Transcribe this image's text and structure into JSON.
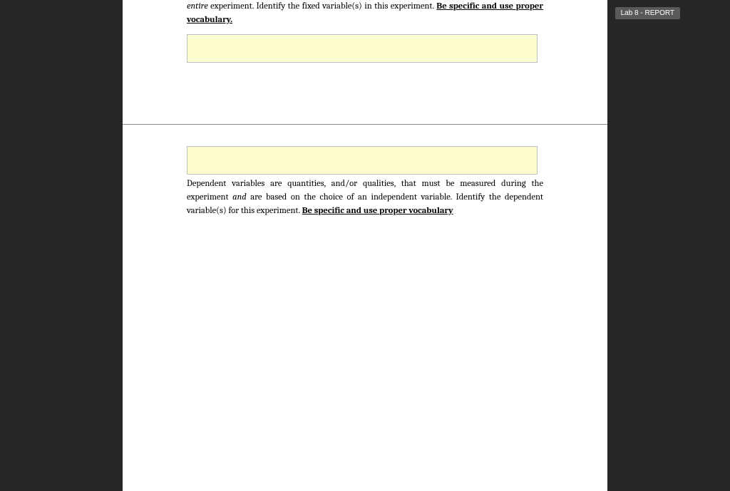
{
  "tab": {
    "label": "Lab 8 - REPORT"
  },
  "page1": {
    "text_italic_prefix": "entire",
    "text_mid": " experiment. Identify the fixed variable(s) in this experiment. ",
    "text_bold_underline": "Be specific and use proper vocabulary.",
    "answer_box_bg": "#fdfccf"
  },
  "page2": {
    "text_pre": "Dependent variables are quantities, and/or qualities, that must be measured during the experiment ",
    "text_italic": "and",
    "text_mid": " are based on the choice of an independent variable. Identify the dependent variable(s) for this experiment. ",
    "text_bold_underline": "Be specific and use proper vocabulary",
    "answer_box_bg": "#fdfccf"
  },
  "styling": {
    "page_bg": "#ffffff",
    "viewer_bg": "#262626",
    "box_border": "#bdbdbd",
    "text_color": "#000000",
    "body_fontsize": 12.5,
    "tab_bg": "#5a5a5a",
    "tab_fg": "#ffffff"
  }
}
